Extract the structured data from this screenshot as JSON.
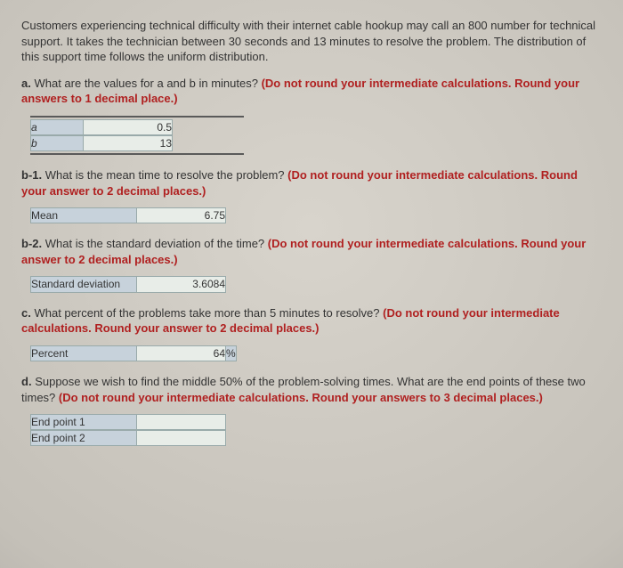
{
  "intro": "Customers experiencing technical difficulty with their internet cable hookup may call an 800 number for technical support. It takes the technician between 30 seconds and 13 minutes to resolve the problem. The distribution of this support time follows the uniform distribution.",
  "parts": {
    "a": {
      "label": "a.",
      "q_black": "What are the values for a and b in minutes? ",
      "q_red": "(Do not round your intermediate calculations. Round your answers to 1 decimal place.)",
      "rows": [
        {
          "lbl": "a",
          "val": "0.5"
        },
        {
          "lbl": "b",
          "val": "13"
        }
      ]
    },
    "b1": {
      "label": "b-1.",
      "q_black": "What is the mean time to resolve the problem? ",
      "q_red": "(Do not round your intermediate calculations. Round your answer to 2 decimal places.)",
      "row": {
        "lbl": "Mean",
        "val": "6.75"
      }
    },
    "b2": {
      "label": "b-2.",
      "q_black": "What is the standard deviation of the time? ",
      "q_red": "(Do not round your intermediate calculations. Round your answer to 2 decimal places.)",
      "row": {
        "lbl": "Standard deviation",
        "val": "3.6084"
      }
    },
    "c": {
      "label": "c.",
      "q_black": "What percent of the problems take more than 5 minutes to resolve? ",
      "q_red": "(Do not round your intermediate calculations. Round your answer to 2 decimal places.)",
      "row": {
        "lbl": "Percent",
        "val": "64",
        "unit": "%"
      }
    },
    "d": {
      "label": "d.",
      "q_black": "Suppose we wish to find the middle 50% of the problem-solving times. What are the end points of these two times? ",
      "q_red": "(Do not round your intermediate calculations. Round your answers to 3 decimal places.)",
      "rows": [
        {
          "lbl": "End point 1",
          "val": ""
        },
        {
          "lbl": "End point 2",
          "val": ""
        }
      ]
    }
  }
}
